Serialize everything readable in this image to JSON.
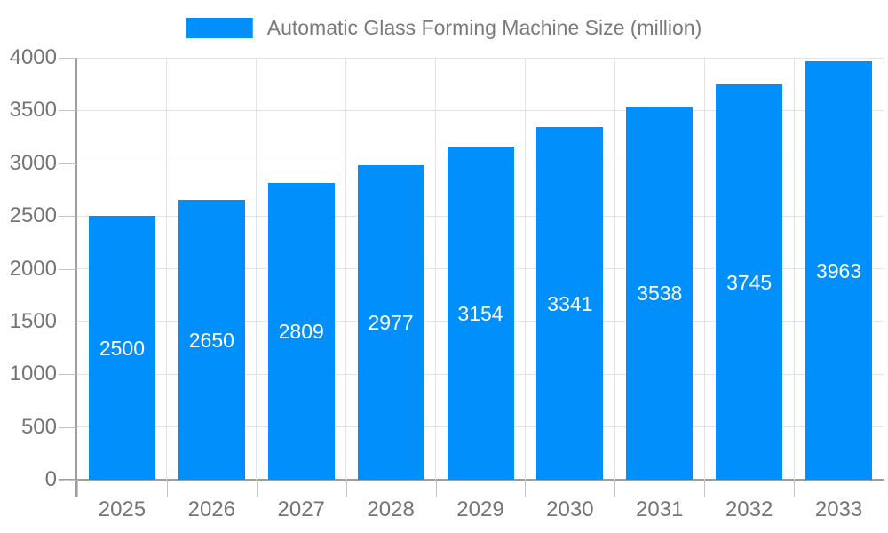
{
  "legend": {
    "label": "Automatic Glass Forming Machine Size (million)",
    "swatch_color": "#008ffb"
  },
  "chart_data": {
    "type": "bar",
    "title": "Automatic Glass Forming Machine Size (million)",
    "categories": [
      "2025",
      "2026",
      "2027",
      "2028",
      "2029",
      "2030",
      "2031",
      "2032",
      "2033"
    ],
    "values": [
      2500,
      2650,
      2809,
      2977,
      3154,
      3341,
      3538,
      3745,
      3963
    ],
    "xlabel": "",
    "ylabel": "",
    "ylim": [
      0,
      4000
    ],
    "yticks": [
      0,
      500,
      1000,
      1500,
      2000,
      2500,
      3000,
      3500,
      4000
    ],
    "grid": true,
    "legend_position": "top",
    "bar_color": "#008ffb",
    "value_label_color": "#ffffff",
    "axis_text_color": "#757575",
    "grid_color": "#e3e3e3",
    "axis_line_color": "#9e9e9e"
  }
}
